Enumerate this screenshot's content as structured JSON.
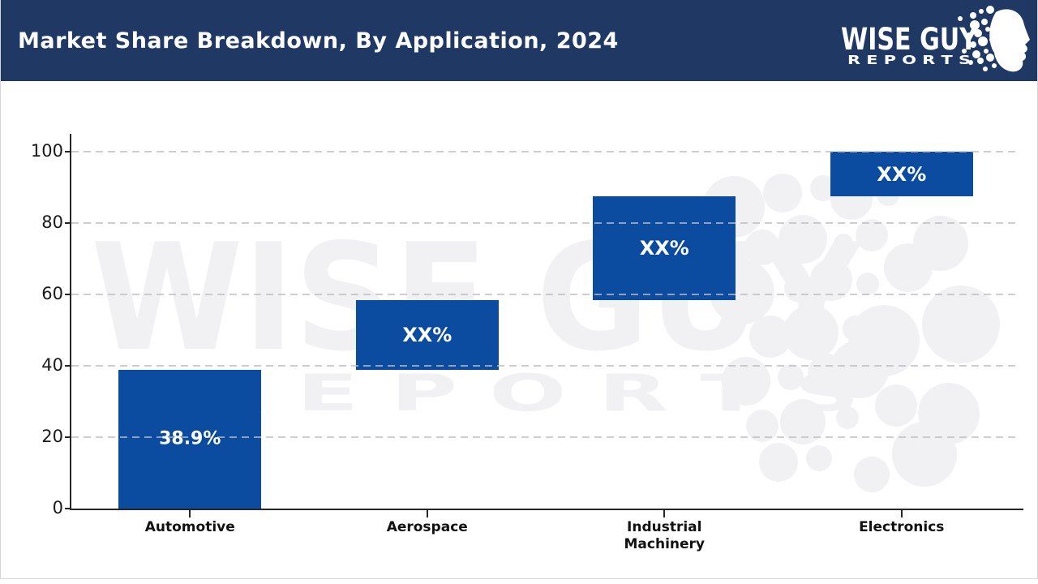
{
  "header": {
    "title": "Market Share Breakdown, By Application, 2024",
    "bg_color": "#203864",
    "logo": {
      "line1": "WISE GUY",
      "line2": "R E P O R T S"
    }
  },
  "watermark": {
    "line1": "WISE GUY",
    "line2": "R E P O R T S"
  },
  "chart_data": {
    "type": "bar",
    "subtype": "waterfall",
    "title": "Market Share Breakdown, By Application, 2024",
    "xlabel": "",
    "ylabel": "",
    "categories": [
      "Automotive",
      "Aerospace",
      "Industrial Machinery",
      "Electronics"
    ],
    "segments": [
      {
        "category": "Automotive",
        "start": 0,
        "end": 38.9,
        "value": 38.9,
        "label": "38.9%"
      },
      {
        "category": "Aerospace",
        "start": 38.9,
        "end": 58.4,
        "value": 19.5,
        "label": "XX%"
      },
      {
        "category": "Industrial Machinery",
        "start": 58.4,
        "end": 87.5,
        "value": 29.1,
        "label": "XX%"
      },
      {
        "category": "Electronics",
        "start": 87.5,
        "end": 100,
        "value": 12.5,
        "label": "XX%"
      }
    ],
    "ylim": [
      0,
      105
    ],
    "yticks": [
      0,
      20,
      40,
      60,
      80,
      100
    ],
    "grid": "horizontal dashed, light gray, drawn over bars",
    "legend": "none",
    "bar_color": "#0b4ba0",
    "bar_label_color": "#ffffff",
    "axis_color": "#262626",
    "tick_label_color": "#1a1a1a"
  }
}
